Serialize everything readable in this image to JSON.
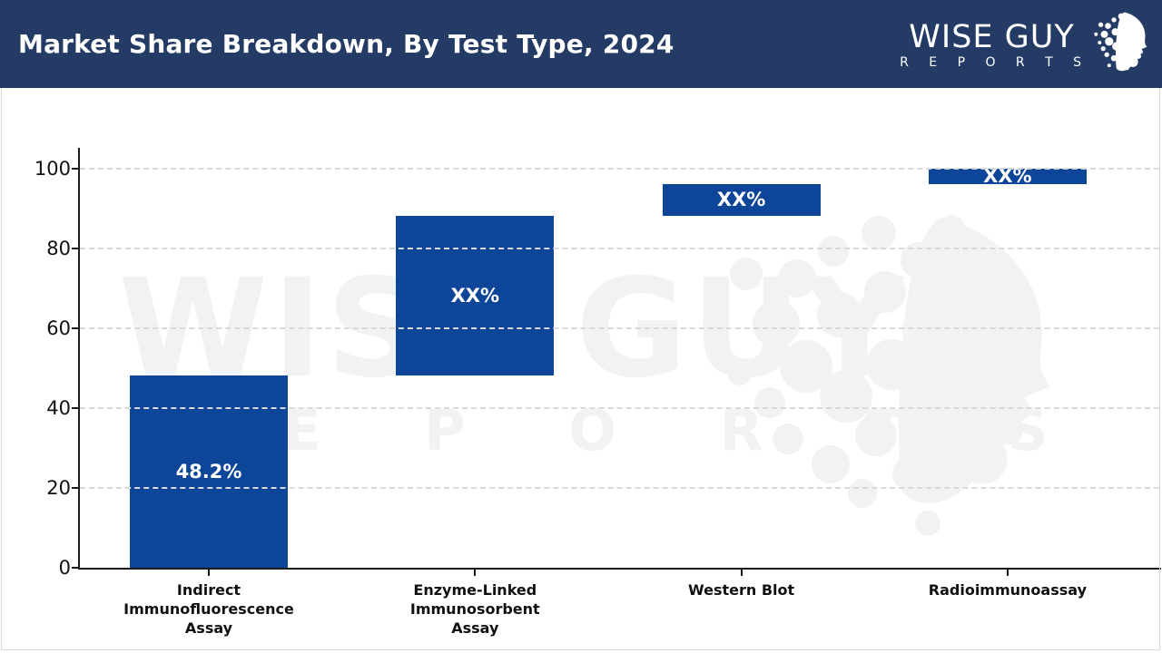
{
  "header": {
    "title": "Market Share Breakdown, By Test Type, 2024",
    "logo": {
      "name": "WISE GUY",
      "subtitle": "R E P O R T S"
    }
  },
  "watermark": {
    "line1": "WISE GUY",
    "line2": "R E P O R T S"
  },
  "colors": {
    "header_bg": "#243b66",
    "bar": "#0d4599",
    "bar_label_text": "#ffffff",
    "grid": "#d9d9d9",
    "axis": "#1a1a1a",
    "watermark": "#f1f2f4"
  },
  "chart_data": {
    "type": "bar",
    "subtype": "stacked-waterfall",
    "title": "Market Share Breakdown, By Test Type, 2024",
    "xlabel": "",
    "ylabel": "",
    "ylim": [
      0,
      105
    ],
    "yticks": [
      0,
      20,
      40,
      60,
      80,
      100
    ],
    "grid": "horizontal-dashed-over-bars",
    "legend": "none",
    "categories": [
      "Indirect Immunofluorescence Assay",
      "Enzyme-Linked Immunosorbent Assay",
      "Western Blot",
      "Radioimmunoassay"
    ],
    "values": [
      48.2,
      40.0,
      8.0,
      3.8
    ],
    "bars": [
      {
        "category": "Indirect Immunofluorescence Assay",
        "category_lines": [
          "Indirect",
          "Immunofluorescence",
          "Assay"
        ],
        "label": "48.2%",
        "start": 0,
        "end": 48.2
      },
      {
        "category": "Enzyme-Linked Immunosorbent Assay",
        "category_lines": [
          "Enzyme-Linked",
          "Immunosorbent",
          "Assay"
        ],
        "label": "XX%",
        "start": 48.2,
        "end": 88.2
      },
      {
        "category": "Western Blot",
        "category_lines": [
          "Western Blot"
        ],
        "label": "XX%",
        "start": 88.2,
        "end": 96.2
      },
      {
        "category": "Radioimmunoassay",
        "category_lines": [
          "Radioimmunoassay"
        ],
        "label": "XX%",
        "start": 96.2,
        "end": 100.0
      }
    ]
  }
}
